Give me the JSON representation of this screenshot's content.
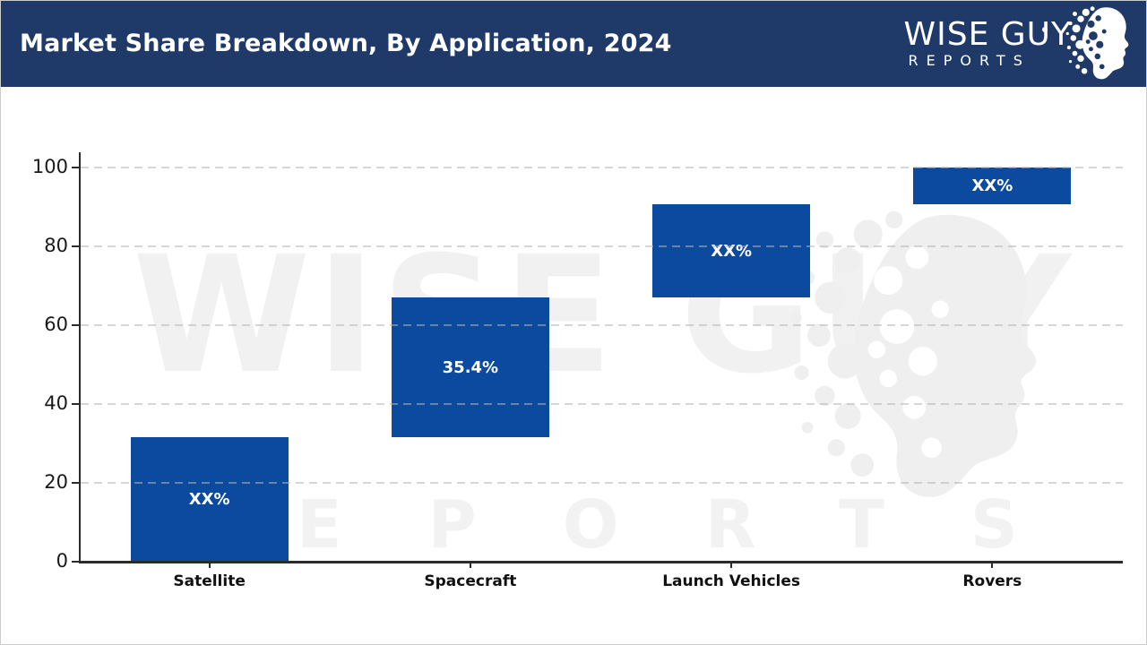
{
  "header": {
    "title": "Market Share Breakdown, By Application, 2024",
    "logo": {
      "name": "WISE GUY",
      "sub": "REPORTS"
    }
  },
  "watermark": {
    "line1": "WISE GUY",
    "line2": "REPORTS"
  },
  "chart_data": {
    "type": "bar",
    "subtype": "waterfall",
    "title": "Market Share Breakdown, By Application, 2024",
    "categories": [
      "Satellite",
      "Spacecraft",
      "Launch Vehicles",
      "Rovers"
    ],
    "segments": [
      {
        "category": "Satellite",
        "start": 0,
        "end": 31.6,
        "label": "XX%"
      },
      {
        "category": "Spacecraft",
        "start": 31.6,
        "end": 67.0,
        "label": "35.4%"
      },
      {
        "category": "Launch Vehicles",
        "start": 67.0,
        "end": 90.6,
        "label": "XX%"
      },
      {
        "category": "Rovers",
        "start": 90.6,
        "end": 100,
        "label": "XX%"
      }
    ],
    "yticks": [
      0,
      20,
      40,
      60,
      80,
      100
    ],
    "ylim": [
      0,
      100
    ],
    "xlabel": "",
    "ylabel": "",
    "grid": "dashed-horizontal",
    "legend": "none",
    "bar_color": "#0b4a9f",
    "label_color": "#ffffff"
  },
  "colors": {
    "header_bg": "#1f3a68",
    "bar": "#0b4a9f",
    "axis": "#2b2b2b",
    "grid": "#dcdcdc",
    "watermark": "#f1f1f1"
  }
}
